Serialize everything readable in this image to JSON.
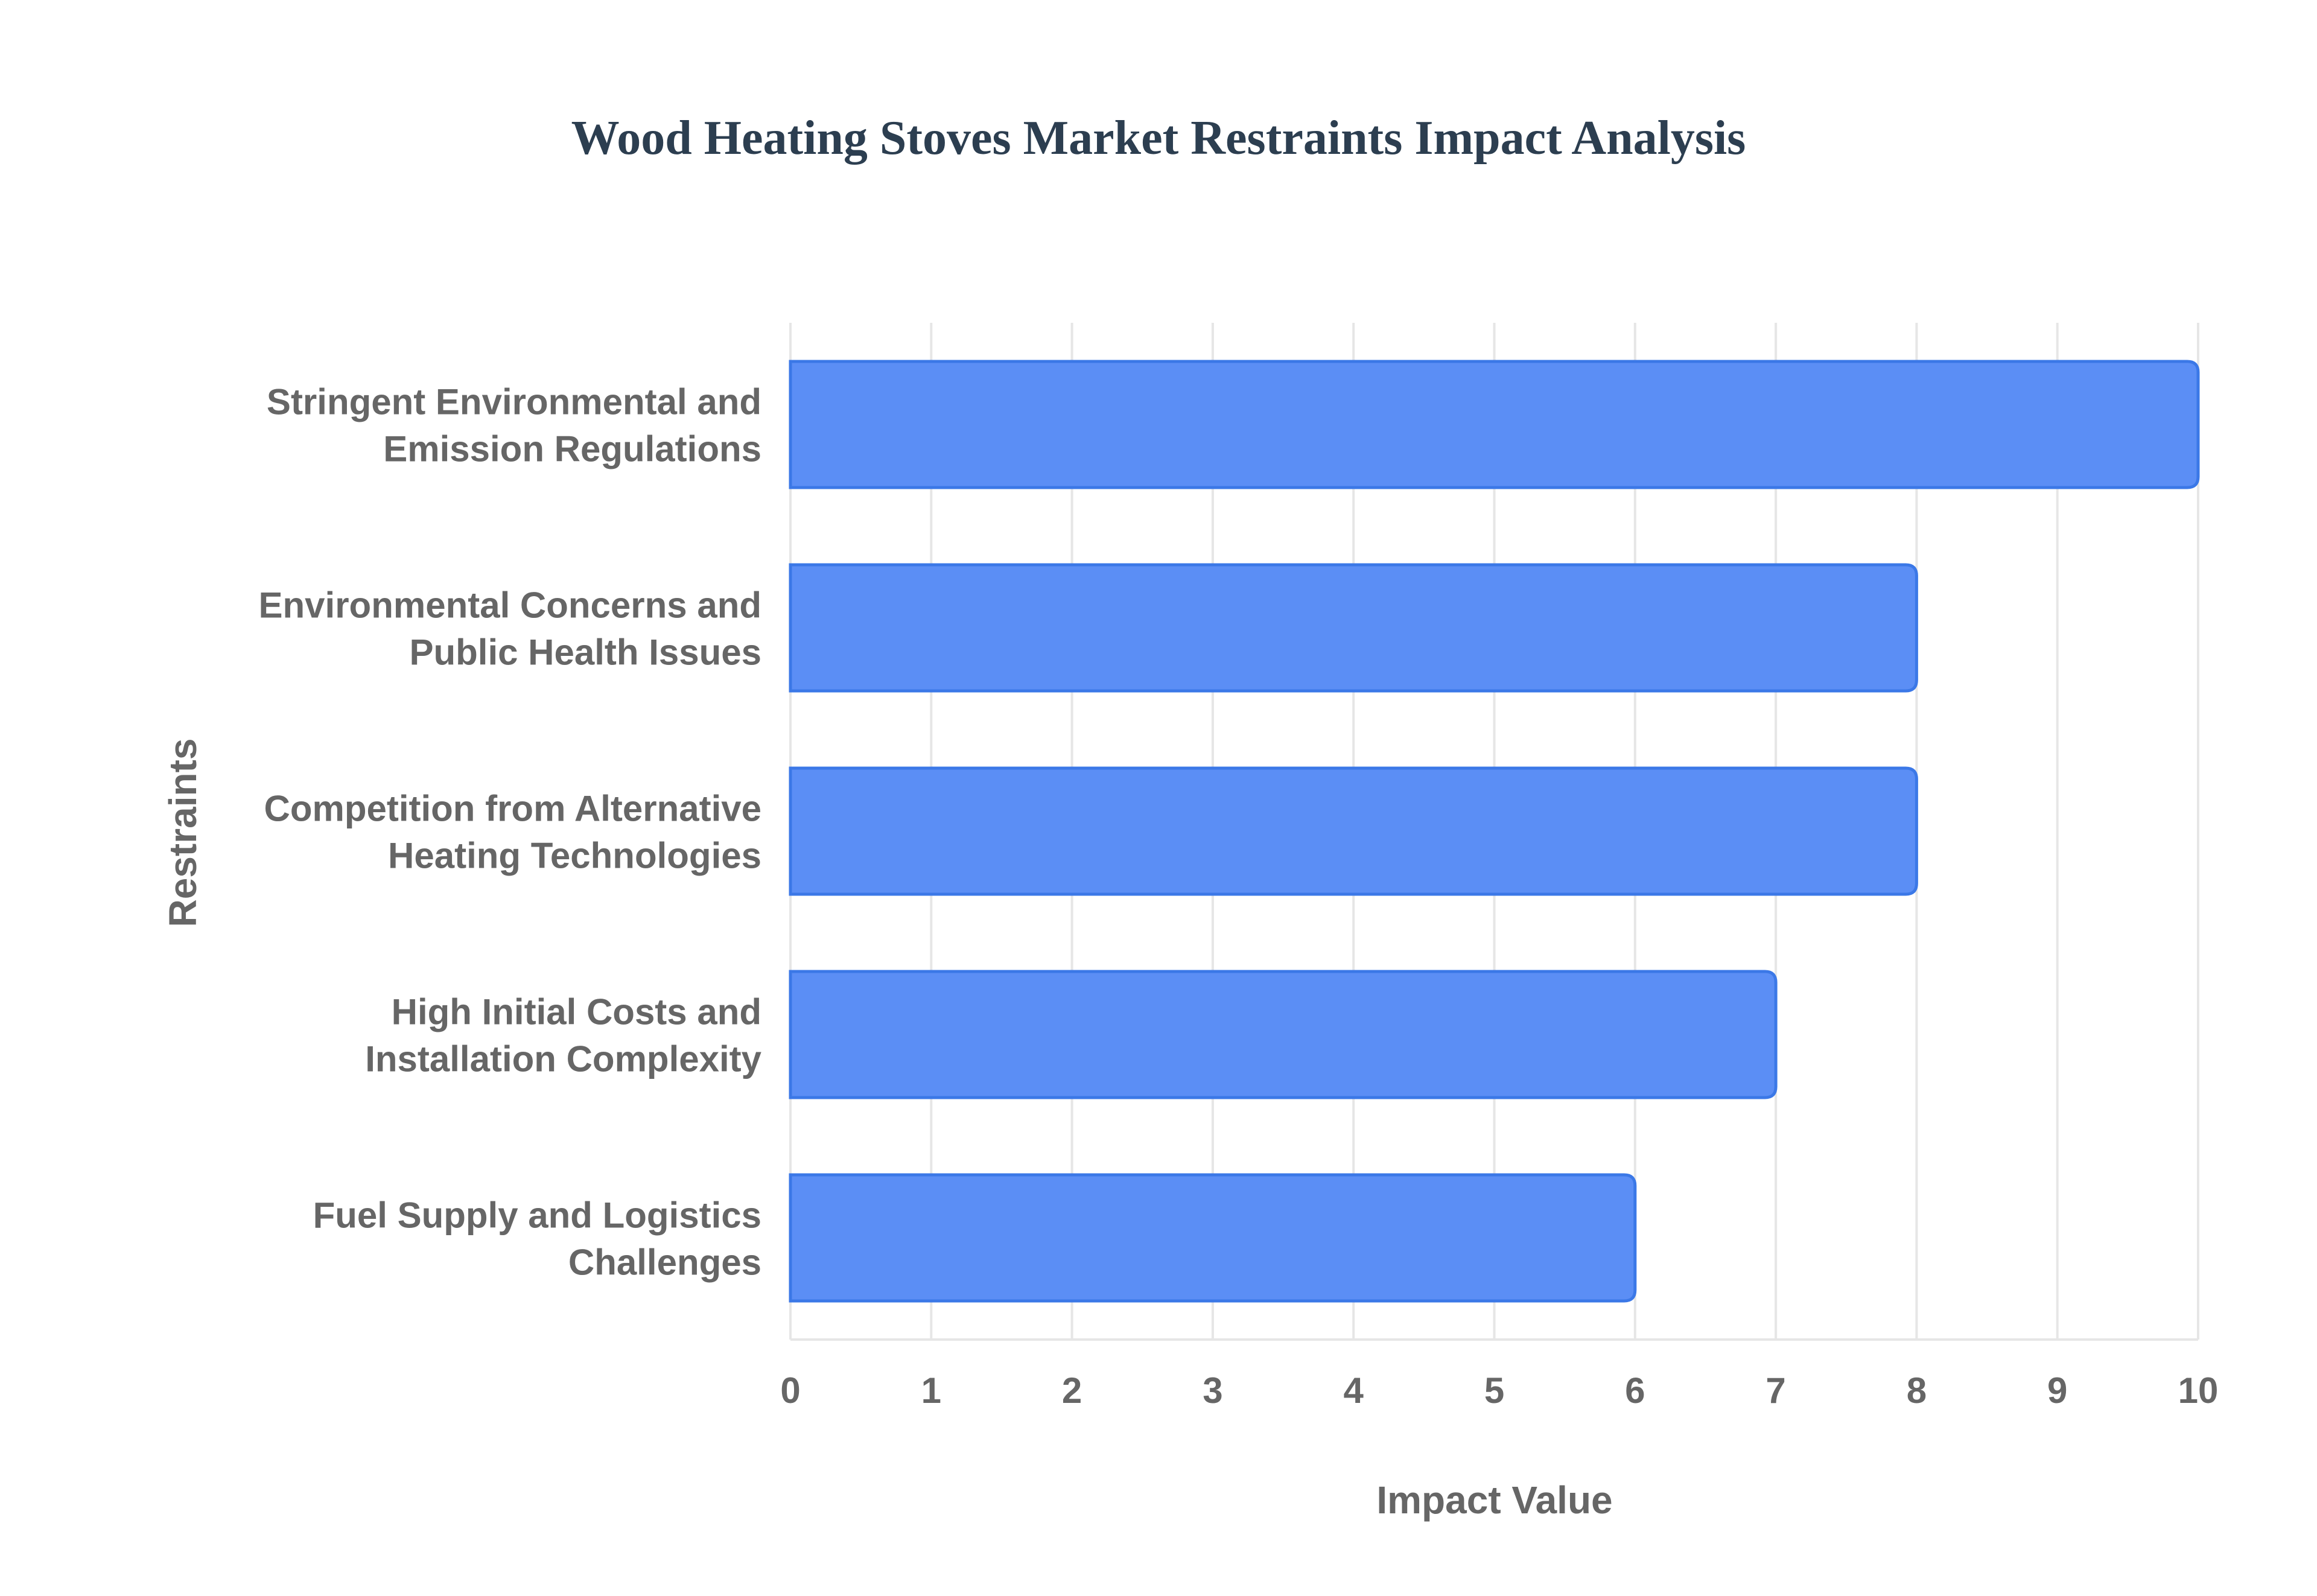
{
  "chart_data": {
    "type": "bar",
    "orientation": "horizontal",
    "title": "Wood Heating Stoves Market Restraints Impact Analysis",
    "xlabel": "Impact Value",
    "ylabel": "Restraints",
    "categories": [
      [
        "Stringent Environmental and",
        "Emission Regulations"
      ],
      [
        "Environmental Concerns and",
        "Public Health Issues"
      ],
      [
        "Competition from Alternative",
        "Heating Technologies"
      ],
      [
        "High Initial Costs and",
        "Installation Complexity"
      ],
      [
        "Fuel Supply and Logistics",
        "Challenges"
      ]
    ],
    "values": [
      10,
      8,
      8,
      7,
      6
    ],
    "xlim": [
      0,
      10
    ],
    "xticks": [
      0,
      1,
      2,
      3,
      4,
      5,
      6,
      7,
      8,
      9,
      10
    ],
    "grid": true,
    "legend": "none",
    "colors": {
      "bar_fill": "#5b8ef5",
      "bar_stroke": "#3b78e7",
      "grid": "#e6e6e6",
      "title": "#2c3e50",
      "text": "#666666"
    }
  }
}
